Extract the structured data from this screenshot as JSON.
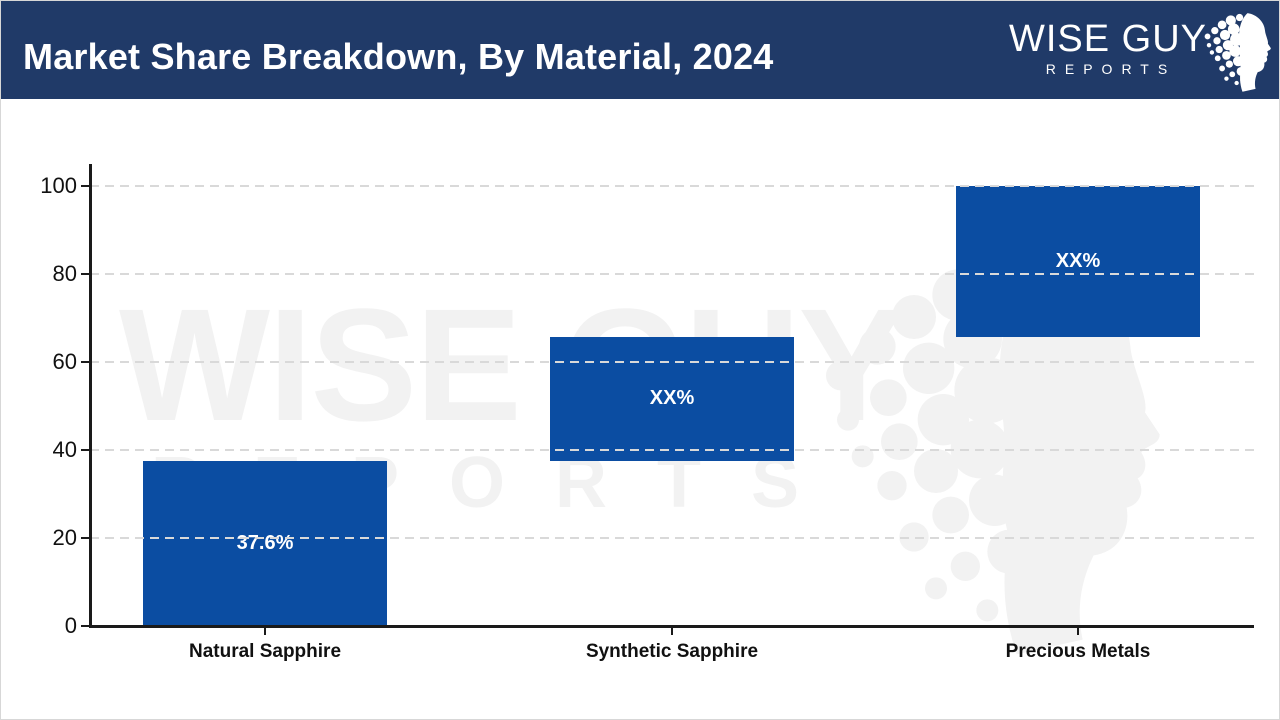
{
  "header": {
    "title": "Market Share Breakdown, By Material, 2024",
    "logo": {
      "line1": "WISE GUY",
      "line2": "REPORTS"
    }
  },
  "watermark": {
    "line1": "WISE GUY",
    "line2": "REPORTS"
  },
  "colors": {
    "header_bg": "#203a68",
    "bar": "#0b4da2",
    "bar_value_label": "#ffffff",
    "axis": "#1a1a1a",
    "gridline": "#d9d9d9",
    "watermark": "#f2f2f2",
    "category_label": "#111111"
  },
  "chart_data": {
    "type": "bar",
    "subtype": "waterfall",
    "title": "Market Share Breakdown, By Material, 2024",
    "categories": [
      "Natural Sapphire",
      "Synthetic Sapphire",
      "Precious Metals"
    ],
    "segments": [
      {
        "category": "Natural Sapphire",
        "start": 0,
        "end": 37.6,
        "value_label": "37.6%"
      },
      {
        "category": "Synthetic Sapphire",
        "start": 37.6,
        "end": 65.7,
        "value_label": "XX%"
      },
      {
        "category": "Precious Metals",
        "start": 65.7,
        "end": 100,
        "value_label": "XX%"
      }
    ],
    "xlabel": "",
    "ylabel": "",
    "ylim": [
      0,
      100
    ],
    "yticks": [
      0,
      20,
      40,
      60,
      80,
      100
    ],
    "grid": "horizontal-dashed",
    "legend": "none"
  }
}
